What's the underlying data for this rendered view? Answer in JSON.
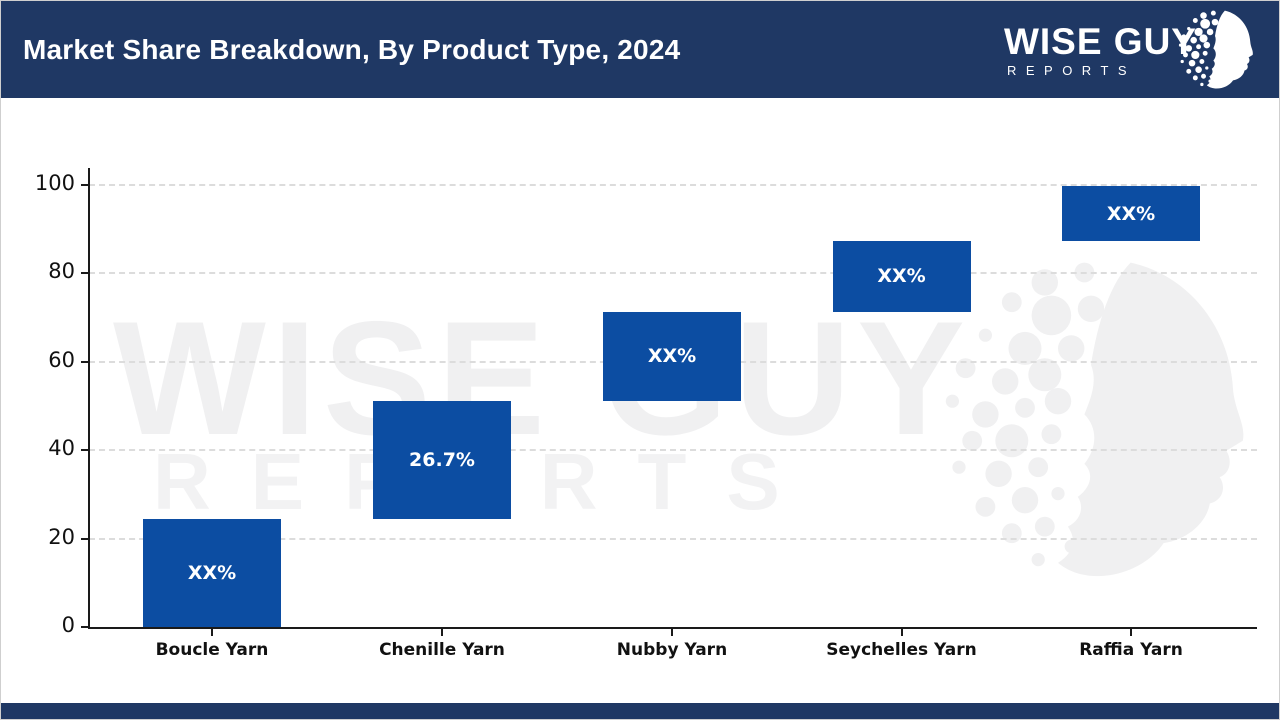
{
  "header": {
    "title": "Market Share Breakdown, By Product Type, 2024",
    "logo": {
      "line1": "WISE GUY",
      "line2": "REPORTS"
    }
  },
  "watermark": {
    "line1": "WISE GUY",
    "line2": "REPORTS"
  },
  "chart_data": {
    "type": "bar",
    "subtype": "floating-segment waterfall-style market share bars",
    "title": "Market Share Breakdown, By Product Type, 2024",
    "categories": [
      "Boucle Yarn",
      "Chenille Yarn",
      "Nubby Yarn",
      "Seychelles Yarn",
      "Raffia Yarn"
    ],
    "bars": [
      {
        "category": "Boucle Yarn",
        "start": 0,
        "end": 24.5,
        "label": "XX%"
      },
      {
        "category": "Chenille Yarn",
        "start": 24.5,
        "end": 51.2,
        "label": "26.7%"
      },
      {
        "category": "Nubby Yarn",
        "start": 51.2,
        "end": 71.3,
        "label": "XX%"
      },
      {
        "category": "Seychelles Yarn",
        "start": 71.3,
        "end": 87.3,
        "label": "XX%"
      },
      {
        "category": "Raffia Yarn",
        "start": 87.3,
        "end": 99.8,
        "label": "XX%"
      }
    ],
    "xlabel": "",
    "ylabel": "",
    "ylim": [
      0,
      104
    ],
    "yticks": [
      0,
      20,
      40,
      60,
      80,
      100
    ],
    "grid": "horizontal dashed",
    "legend": "none",
    "bar_color": "#0c4da2",
    "value_label_color": "#ffffff"
  },
  "colors": {
    "header_bg": "#1f3864",
    "footer_bg": "#1f3864",
    "bar": "#0c4da2",
    "watermark": "#f0f0f1",
    "grid": "#dcdcdc",
    "axis": "#1a1a1a",
    "title_text": "#ffffff"
  }
}
